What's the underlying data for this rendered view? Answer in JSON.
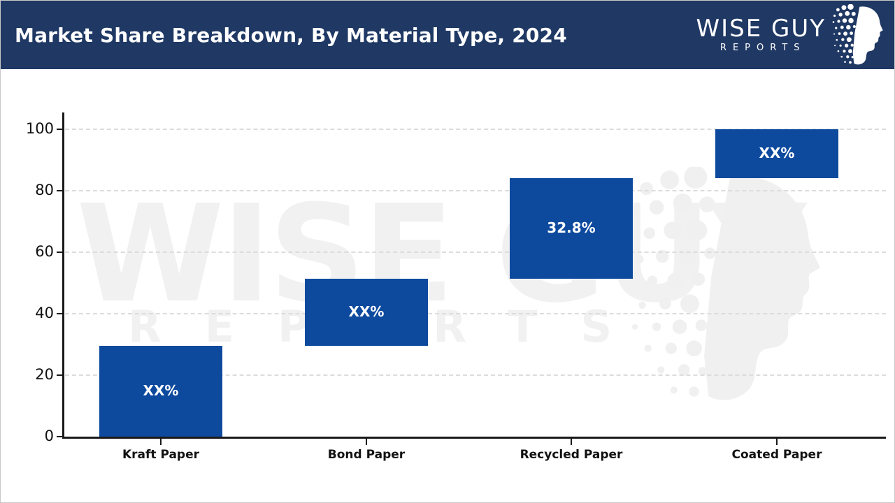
{
  "header": {
    "title": "Market Share Breakdown, By Material Type, 2024",
    "brand": {
      "line1": "WISE GUY",
      "line2": "REPORTS"
    }
  },
  "watermark": {
    "line1": "WISE GUY",
    "line2": "REPORTS"
  },
  "theme": {
    "header_bg": "#1f3864",
    "accent_blue": "#0d4a9e",
    "grid": "#dcdcdc",
    "axis": "#1a1a1a",
    "watermark": "#f1f1f2",
    "text_dark": "#111111",
    "white": "#ffffff",
    "border": "#c9c9c9"
  },
  "chart_data": {
    "type": "bar",
    "subtype": "floating-waterfall",
    "title": "Market Share Breakdown, By Material Type, 2024",
    "categories": [
      "Kraft Paper",
      "Bond Paper",
      "Recycled Paper",
      "Coated Paper"
    ],
    "segments": [
      {
        "category": "Kraft Paper",
        "start": 0,
        "end": 29.5,
        "label": "XX%"
      },
      {
        "category": "Bond Paper",
        "start": 29.5,
        "end": 51.3,
        "label": "XX%"
      },
      {
        "category": "Recycled Paper",
        "start": 51.3,
        "end": 84.1,
        "label": "32.8%"
      },
      {
        "category": "Coated Paper",
        "start": 84.1,
        "end": 100,
        "label": "XX%"
      }
    ],
    "yticks": [
      0,
      20,
      40,
      60,
      80,
      100
    ],
    "ylim": [
      0,
      105
    ],
    "xlabel": "",
    "ylabel": "",
    "grid": "horizontal-dashed",
    "legend": "none",
    "bar_color": "#0d4a9e",
    "bar_label_color": "#ffffff"
  }
}
